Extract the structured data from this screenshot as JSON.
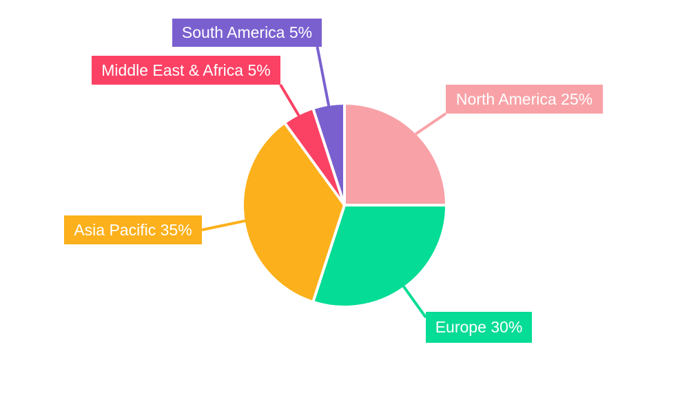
{
  "chart_data": {
    "type": "pie",
    "title": "",
    "categories": [
      "North America",
      "Europe",
      "Asia Pacific",
      "Middle East & Africa",
      "South America"
    ],
    "values": [
      25,
      30,
      35,
      5,
      5
    ],
    "units": "%",
    "start_angle_deg": 0,
    "direction": "clockwise",
    "background": "#ffffff",
    "label_text_color": "#ffffff",
    "slice_gap_color": "#ffffff",
    "slices": [
      {
        "label": "North America",
        "value": 25,
        "display": "North America 25%",
        "color": "#F8A2A7"
      },
      {
        "label": "Europe",
        "value": 30,
        "display": "Europe 30%",
        "color": "#05DC95"
      },
      {
        "label": "Asia Pacific",
        "value": 35,
        "display": "Asia Pacific 35%",
        "color": "#FCB01B"
      },
      {
        "label": "Middle East & Africa",
        "value": 5,
        "display": "Middle East & Africa 5%",
        "color": "#FB4164"
      },
      {
        "label": "South America",
        "value": 5,
        "display": "South America 5%",
        "color": "#7A60CF"
      }
    ]
  }
}
